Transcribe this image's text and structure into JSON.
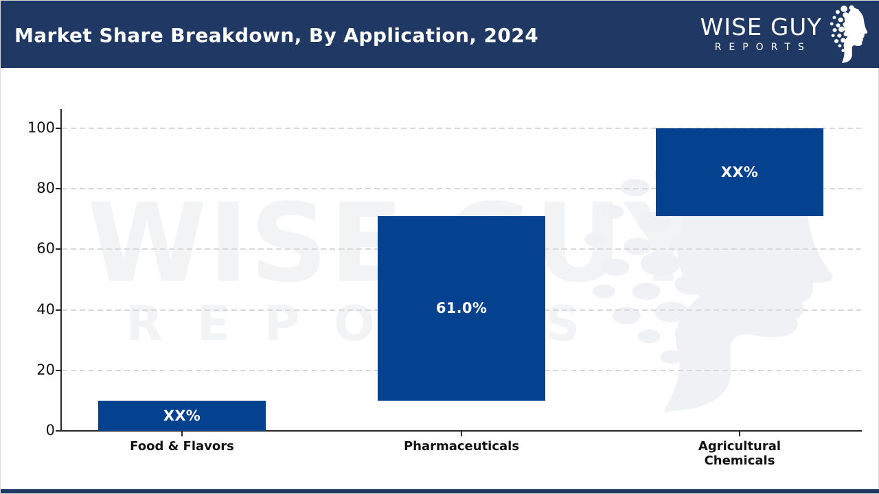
{
  "header": {
    "title": "Market Share Breakdown, By Application, 2024",
    "logo": {
      "line1": "WISE GUY",
      "line2": "REPORTS"
    },
    "bg_color": "#1F3864",
    "text_color": "#FFFFFF"
  },
  "watermark": {
    "line1": "WISE GUY",
    "line2": "REPORTS",
    "color": "#F2F3F5"
  },
  "chart_data": {
    "type": "bar",
    "subtype": "cumulative-waterfall",
    "title": "Market Share Breakdown, By Application, 2024",
    "categories": [
      "Food & Flavors",
      "Pharmaceuticals",
      "Agricultural Chemicals"
    ],
    "bars": [
      {
        "category": "Food & Flavors",
        "label": "XX%",
        "segment_start": 0,
        "segment_end": 10
      },
      {
        "category": "Pharmaceuticals",
        "label": "61.0%",
        "segment_start": 10,
        "segment_end": 71
      },
      {
        "category": "Agricultural Chemicals",
        "label": "XX%",
        "segment_start": 71,
        "segment_end": 100
      }
    ],
    "yticks": [
      0,
      20,
      40,
      60,
      80,
      100
    ],
    "ylim": [
      0,
      106
    ],
    "xlabel": "",
    "ylabel": "",
    "grid": "horizontal-dashed",
    "legend": "none",
    "bar_color": "#04418F",
    "bar_label_color": "#FFFFFF",
    "axis_color": "#262626",
    "gridline_color": "#D9D9D9"
  }
}
